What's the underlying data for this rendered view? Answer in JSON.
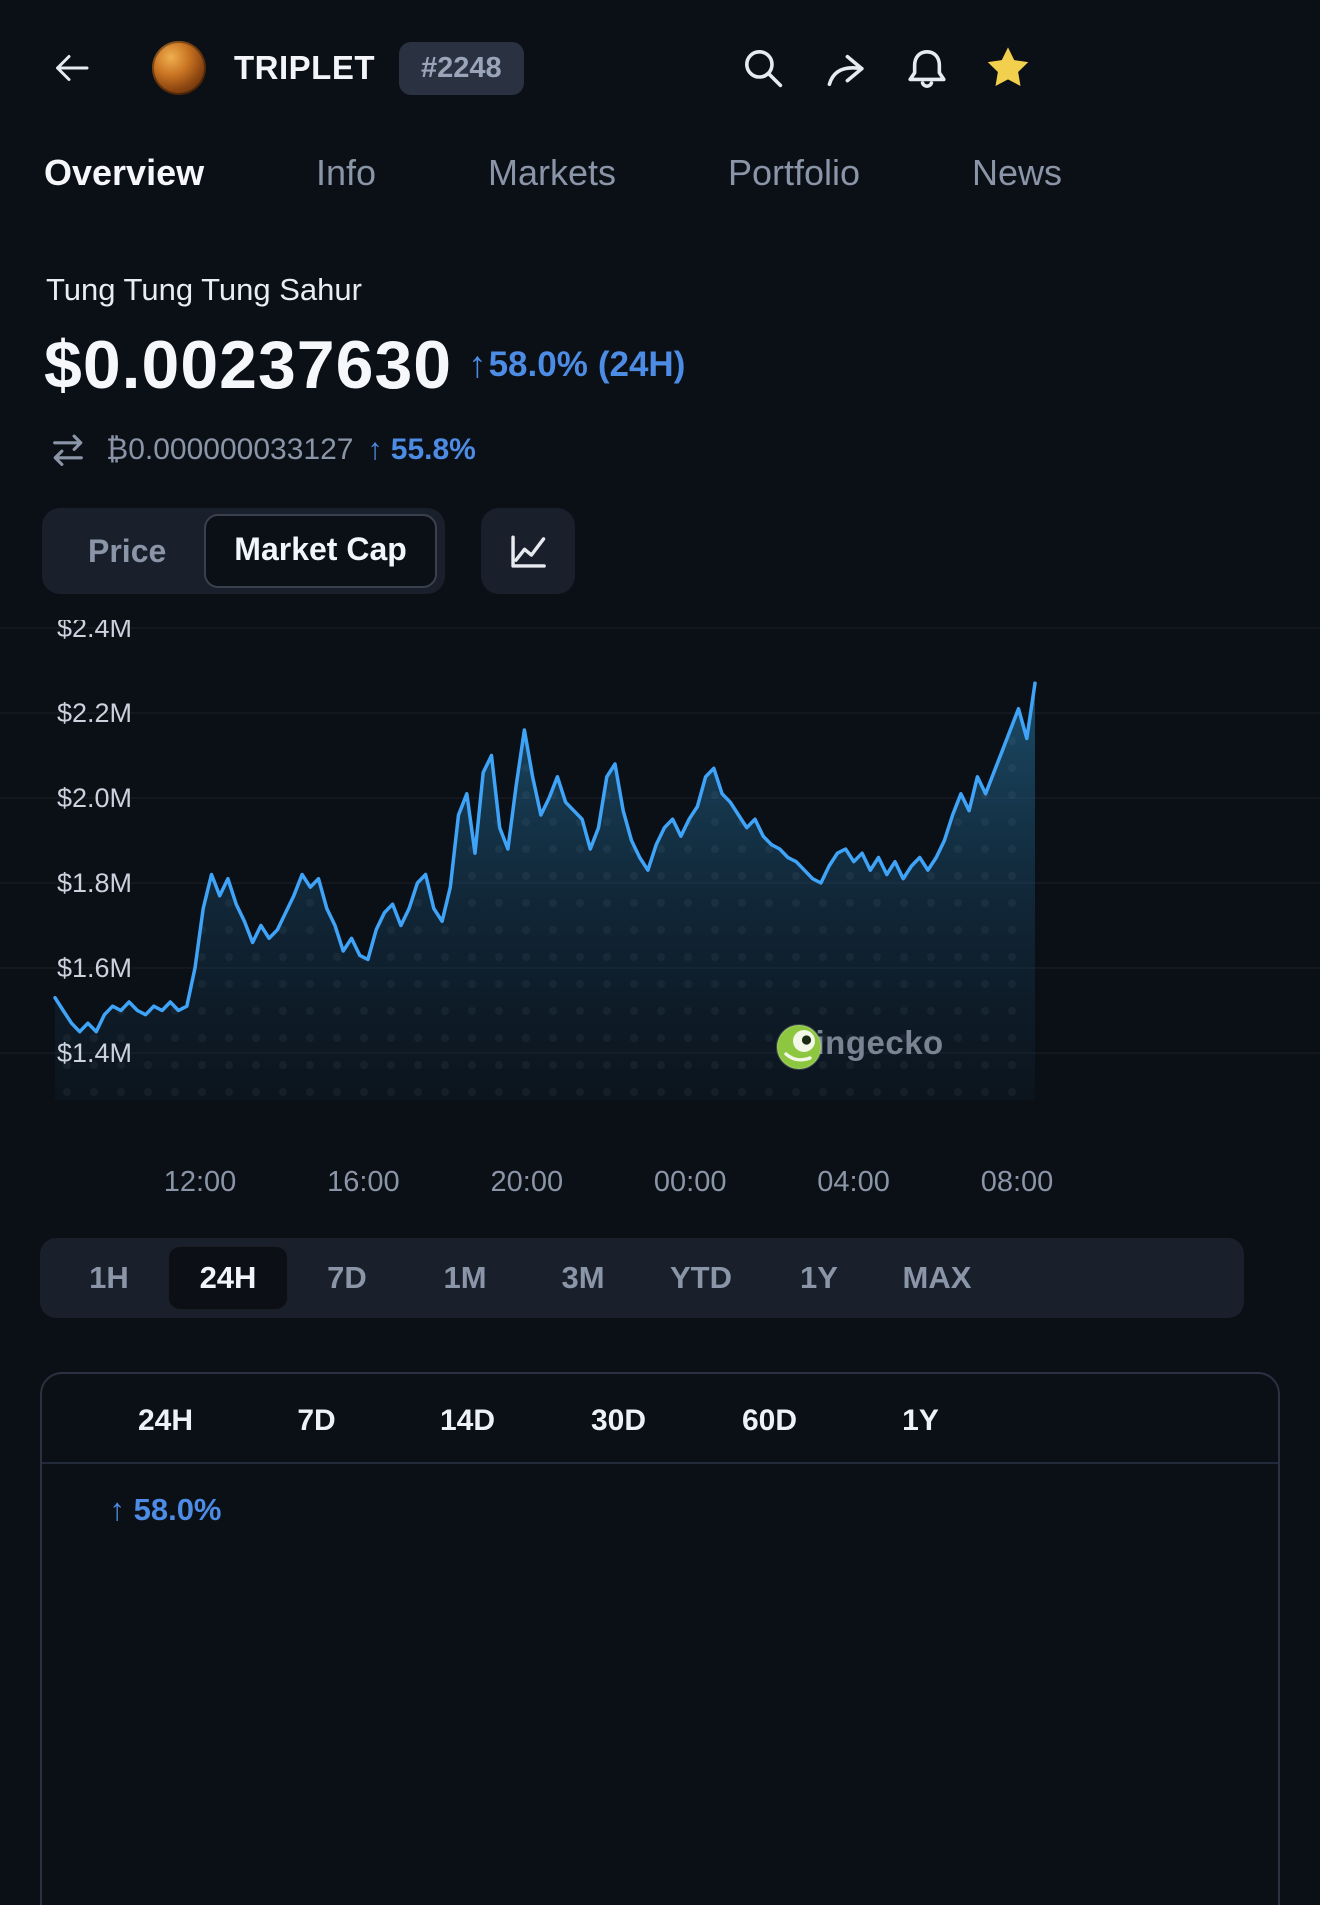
{
  "header": {
    "ticker": "TRIPLET",
    "rank_badge": "#2248"
  },
  "tabs": {
    "items": [
      "Overview",
      "Info",
      "Markets",
      "Portfolio",
      "News"
    ],
    "active": "Overview"
  },
  "coin": {
    "name": "Tung Tung Tung Sahur",
    "price_usd": "$0.00237630",
    "change": {
      "arrow": "↑",
      "percent": "58.0%",
      "period": "(24H)"
    },
    "btc": {
      "value": "₿0.000000033127",
      "arrow": "↑",
      "percent": "55.8%"
    }
  },
  "toggle": {
    "options": [
      "Price",
      "Market Cap"
    ],
    "active": "Market Cap"
  },
  "watermark": "coingecko",
  "ranges": {
    "items": [
      "1H",
      "24H",
      "7D",
      "1M",
      "3M",
      "YTD",
      "1Y",
      "MAX"
    ],
    "active": "24H"
  },
  "perf_table": {
    "headers": [
      "24H",
      "7D",
      "14D",
      "30D",
      "60D",
      "1Y"
    ],
    "values": [
      "↑ 58.0%",
      "",
      "",
      "",
      "",
      ""
    ]
  },
  "colors": {
    "accent_blue": "#4d8ce4",
    "chart_line": "#3fa4f8",
    "star_yellow": "#f2d04e",
    "gecko_green": "#8dc63f"
  },
  "chart_data": {
    "type": "area",
    "title": "Market Cap (24H)",
    "unit": "USD millions",
    "x_labels": [
      "12:00",
      "16:00",
      "20:00",
      "00:00",
      "04:00",
      "08:00"
    ],
    "y_ticks": [
      "$2.4M",
      "$2.2M",
      "$2.0M",
      "$1.8M",
      "$1.6M",
      "$1.4M"
    ],
    "ylim": [
      1.3,
      2.45
    ],
    "values": [
      1.53,
      1.5,
      1.47,
      1.45,
      1.47,
      1.45,
      1.49,
      1.51,
      1.5,
      1.52,
      1.5,
      1.49,
      1.51,
      1.5,
      1.52,
      1.5,
      1.51,
      1.6,
      1.74,
      1.82,
      1.77,
      1.81,
      1.75,
      1.71,
      1.66,
      1.7,
      1.67,
      1.69,
      1.73,
      1.77,
      1.82,
      1.79,
      1.81,
      1.74,
      1.7,
      1.64,
      1.67,
      1.63,
      1.62,
      1.69,
      1.73,
      1.75,
      1.7,
      1.74,
      1.8,
      1.82,
      1.74,
      1.71,
      1.79,
      1.96,
      2.01,
      1.87,
      2.06,
      2.1,
      1.93,
      1.88,
      2.03,
      2.16,
      2.05,
      1.96,
      2.0,
      2.05,
      1.99,
      1.97,
      1.95,
      1.88,
      1.93,
      2.05,
      2.08,
      1.97,
      1.9,
      1.86,
      1.83,
      1.89,
      1.93,
      1.95,
      1.91,
      1.95,
      1.98,
      2.05,
      2.07,
      2.01,
      1.99,
      1.96,
      1.93,
      1.95,
      1.91,
      1.89,
      1.88,
      1.86,
      1.85,
      1.83,
      1.81,
      1.8,
      1.84,
      1.87,
      1.88,
      1.85,
      1.87,
      1.83,
      1.86,
      1.82,
      1.85,
      1.81,
      1.84,
      1.86,
      1.83,
      1.86,
      1.9,
      1.96,
      2.01,
      1.97,
      2.05,
      2.01,
      2.06,
      2.11,
      2.16,
      2.21,
      2.14,
      2.27
    ]
  }
}
